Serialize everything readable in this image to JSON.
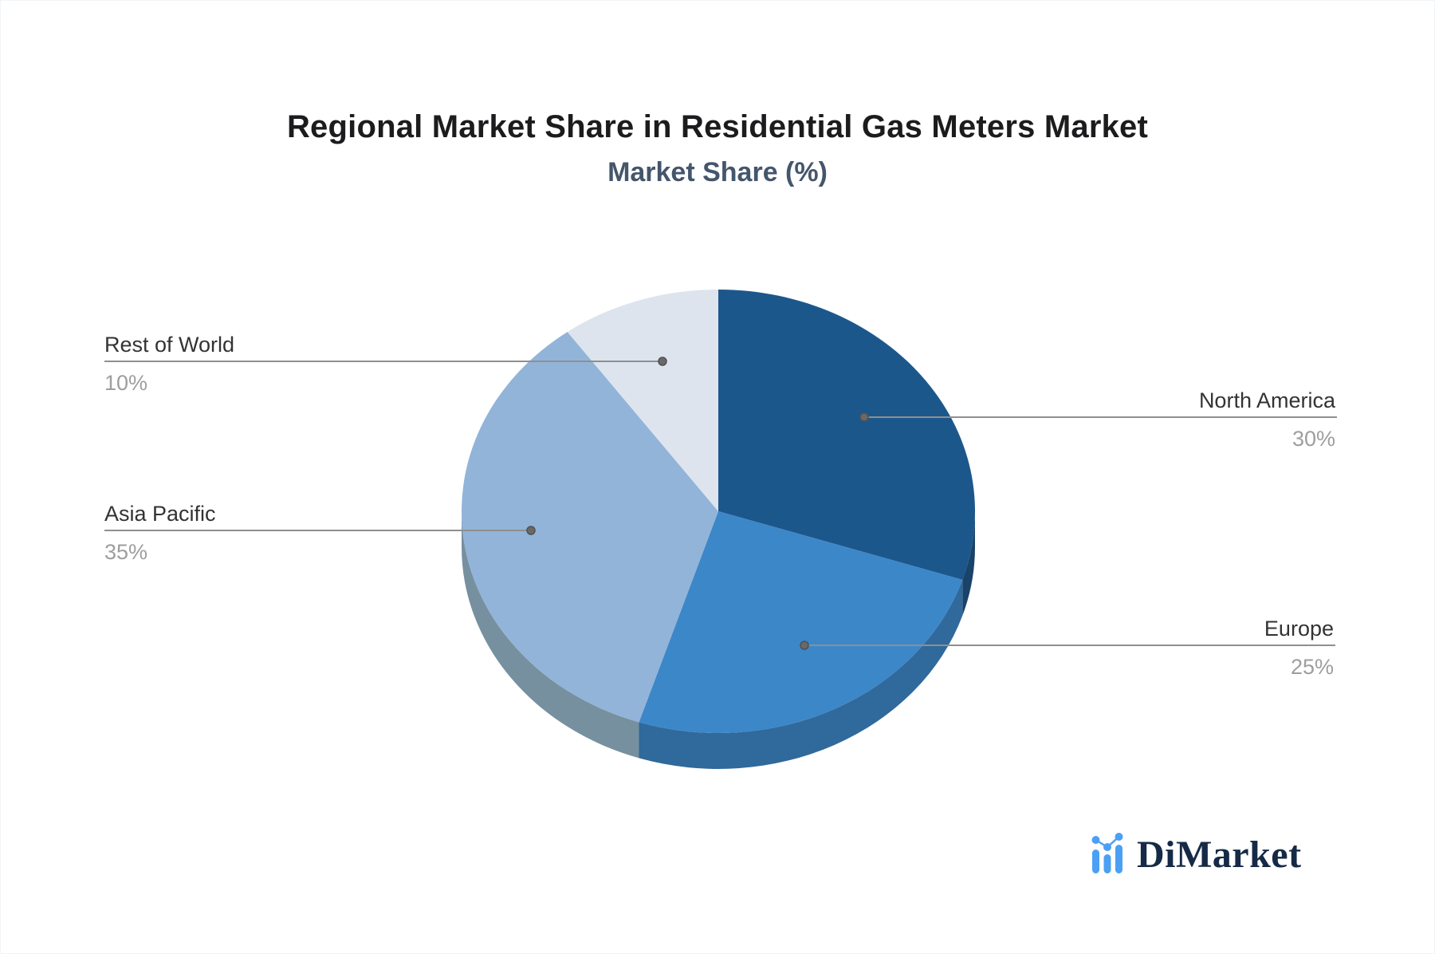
{
  "header": {
    "title": "Regional Market Share in Residential Gas Meters Market",
    "subtitle": "Market Share (%)"
  },
  "chart_data": {
    "type": "pie",
    "style": "3d",
    "title": "Regional Market Share in Residential Gas Meters Market",
    "subtitle": "Market Share (%)",
    "unit": "%",
    "start_angle": "12 o'clock",
    "direction": "clockwise",
    "legend_position": "callout-labels",
    "slices": [
      {
        "label": "North America",
        "value": 30,
        "percent_label": "30%",
        "color": "#1c578c",
        "side_color": "#1a4369"
      },
      {
        "label": "Europe",
        "value": 25,
        "percent_label": "25%",
        "color": "#3c87c8",
        "side_color": "#30699b"
      },
      {
        "label": "Asia Pacific",
        "value": 35,
        "percent_label": "35%",
        "color": "#92b4d9",
        "side_color": "#76909f"
      },
      {
        "label": "Rest of World",
        "value": 10,
        "percent_label": "10%",
        "color": "#dde4ee",
        "side_color": "#c3cdda"
      }
    ]
  },
  "colors": {
    "background": "#ffffff",
    "title": "#1c1c1e",
    "subtitle": "#44566b",
    "label_text": "#333333",
    "percent_text": "#9e9e9e",
    "leader_line": "#8f8f8f",
    "leader_dot": "#696969"
  },
  "logo": {
    "text": "DiMarket",
    "icon": "bar-chart-line-icon",
    "icon_color": "#4BA0F4",
    "text_color": "#152A46"
  }
}
